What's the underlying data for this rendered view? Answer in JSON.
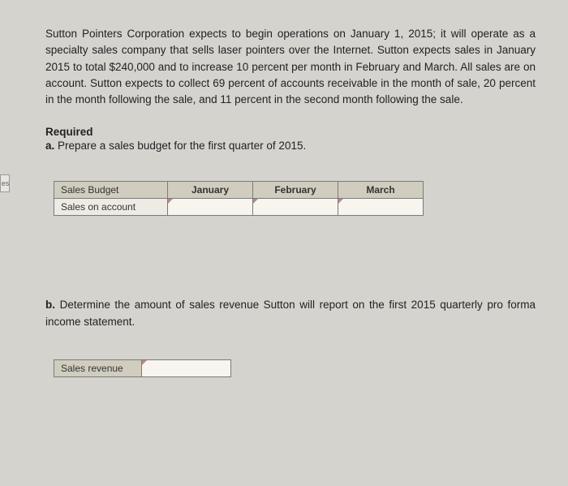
{
  "side_tab": "es",
  "problem_text": "Sutton Pointers Corporation expects to begin operations on January 1, 2015; it will operate as a specialty sales company that sells laser pointers over the Internet. Sutton expects sales in January 2015 to total $240,000 and to increase 10 percent per month in February and March. All sales are on account. Sutton expects to collect 69 percent of accounts receivable in the month of sale, 20 percent in the month following the sale, and 11 percent in the second month following the sale.",
  "required_heading": "Required",
  "part_a": {
    "prefix": "a.",
    "text": "Prepare a sales budget for the first quarter of 2015."
  },
  "table_a": {
    "header_col0": "Sales Budget",
    "columns": [
      "January",
      "February",
      "March"
    ],
    "rows": [
      {
        "label": "Sales on account",
        "values": [
          "",
          "",
          ""
        ]
      }
    ],
    "header_bg": "#d0cdbf",
    "row_bg": "#edebe4",
    "data_bg": "#f7f5ee",
    "border_color": "#7a7a7a"
  },
  "part_b": {
    "prefix": "b.",
    "text": "Determine the amount of sales revenue Sutton will report on the first 2015 quarterly pro forma income statement."
  },
  "table_b": {
    "label": "Sales revenue",
    "value": "",
    "label_bg": "#d0cdbf",
    "data_bg": "#f7f5ee",
    "border_color": "#7a7a7a"
  },
  "colors": {
    "page_bg": "#d5d3ce",
    "text": "#222"
  }
}
